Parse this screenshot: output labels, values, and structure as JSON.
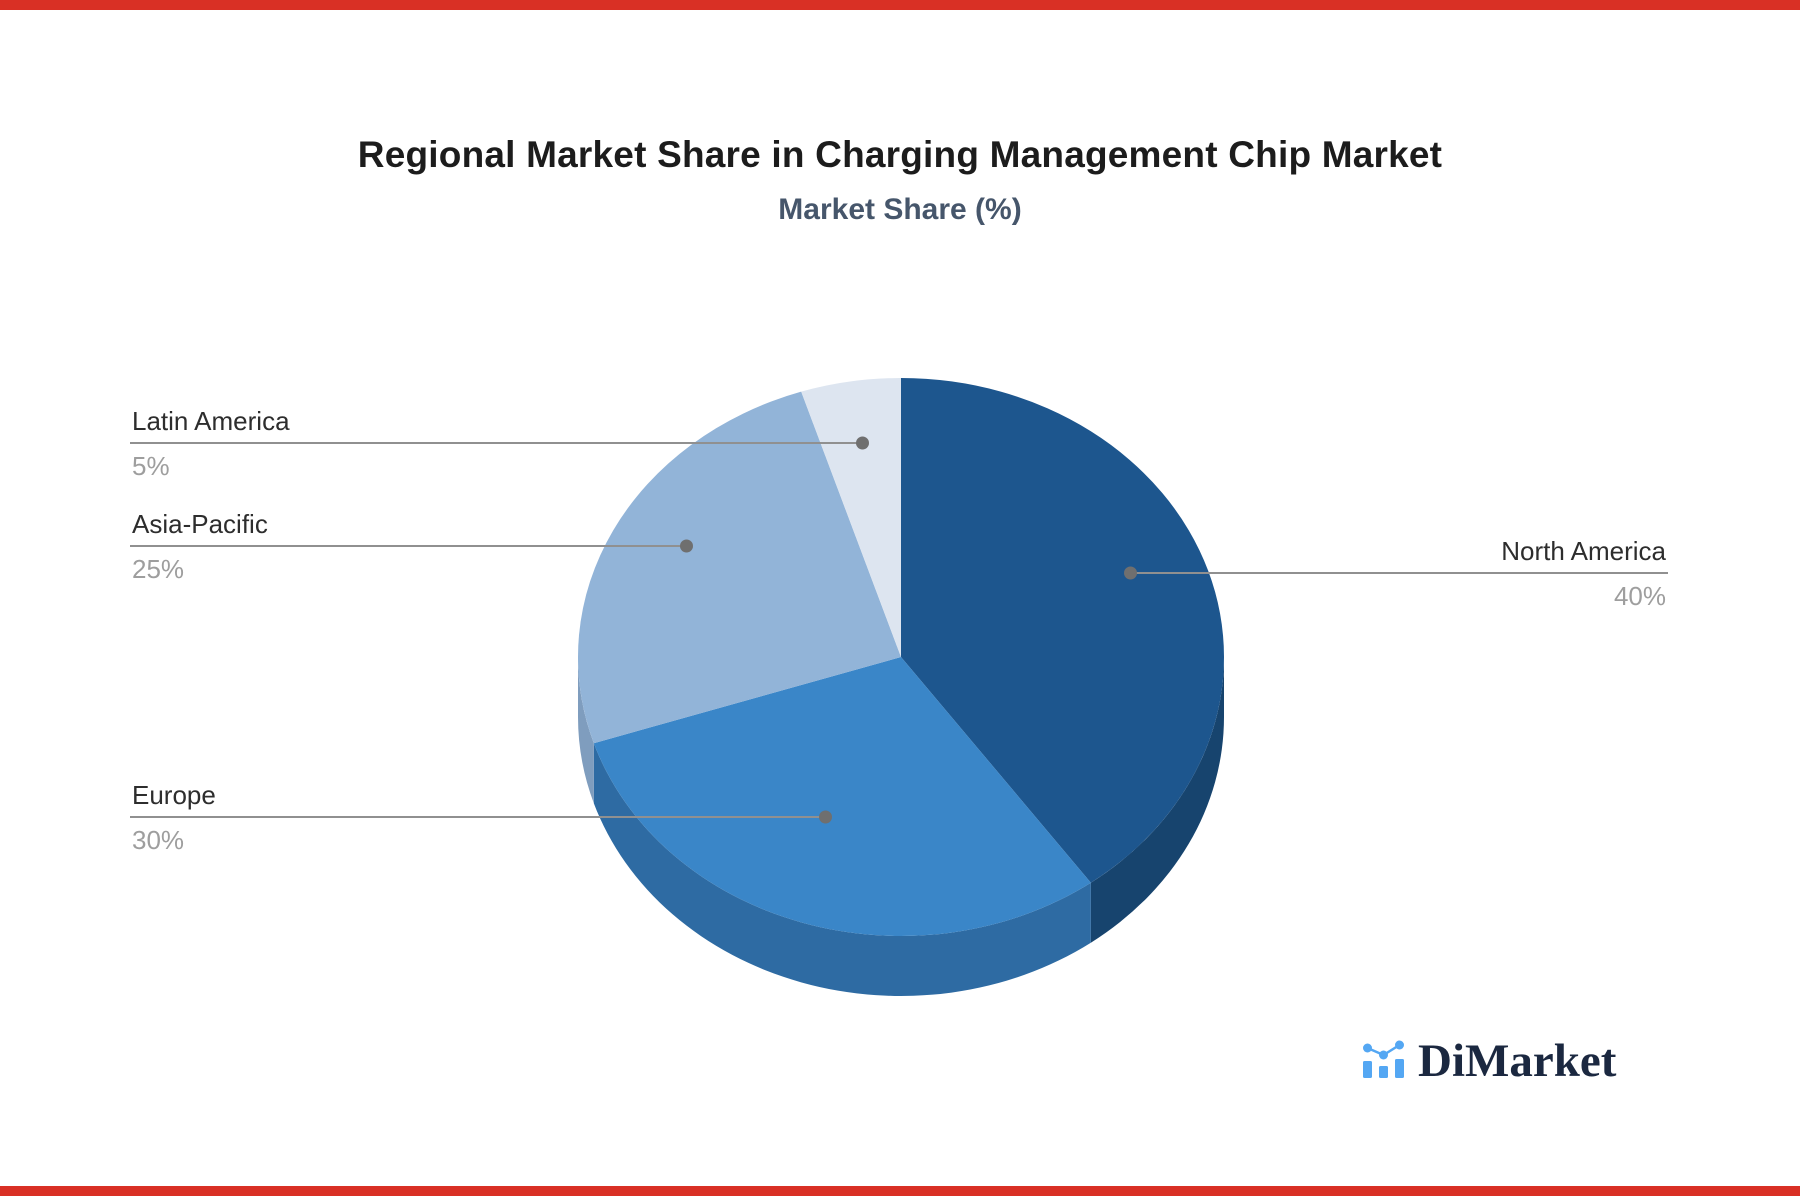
{
  "page": {
    "accent_color": "#d93025",
    "background": "#ffffff"
  },
  "header": {
    "title": "Regional Market Share in Charging Management Chip Market",
    "subtitle": "Market Share (%)"
  },
  "chart_data": {
    "type": "pie",
    "style": "3d-pie",
    "title": "Regional Market Share in Charging Management Chip Market",
    "subtitle": "Market Share (%)",
    "unit": "%",
    "start_angle_deg": 0,
    "direction": "clockwise",
    "labels": [
      "North America",
      "Europe",
      "Asia-Pacific",
      "Latin America"
    ],
    "values": [
      40,
      30,
      25,
      5
    ],
    "colors": [
      "#1d568e",
      "#3a86c8",
      "#92b4d8",
      "#dde5f0"
    ],
    "side_colors": [
      "#17446e",
      "#2e6ba3",
      "#7f9dbe",
      "#b9c6da"
    ],
    "leader_line_color": "#909090",
    "leader_dot_color": "#6f6f6f",
    "legend_position": "callout-labels"
  },
  "callouts": [
    {
      "label": "Latin America",
      "pct": "5%"
    },
    {
      "label": "Asia-Pacific",
      "pct": "25%"
    },
    {
      "label": "Europe",
      "pct": "30%"
    },
    {
      "label": "North America",
      "pct": "40%"
    }
  ],
  "logo": {
    "text": "DiMarket",
    "icon_color": "#54a7f3"
  }
}
